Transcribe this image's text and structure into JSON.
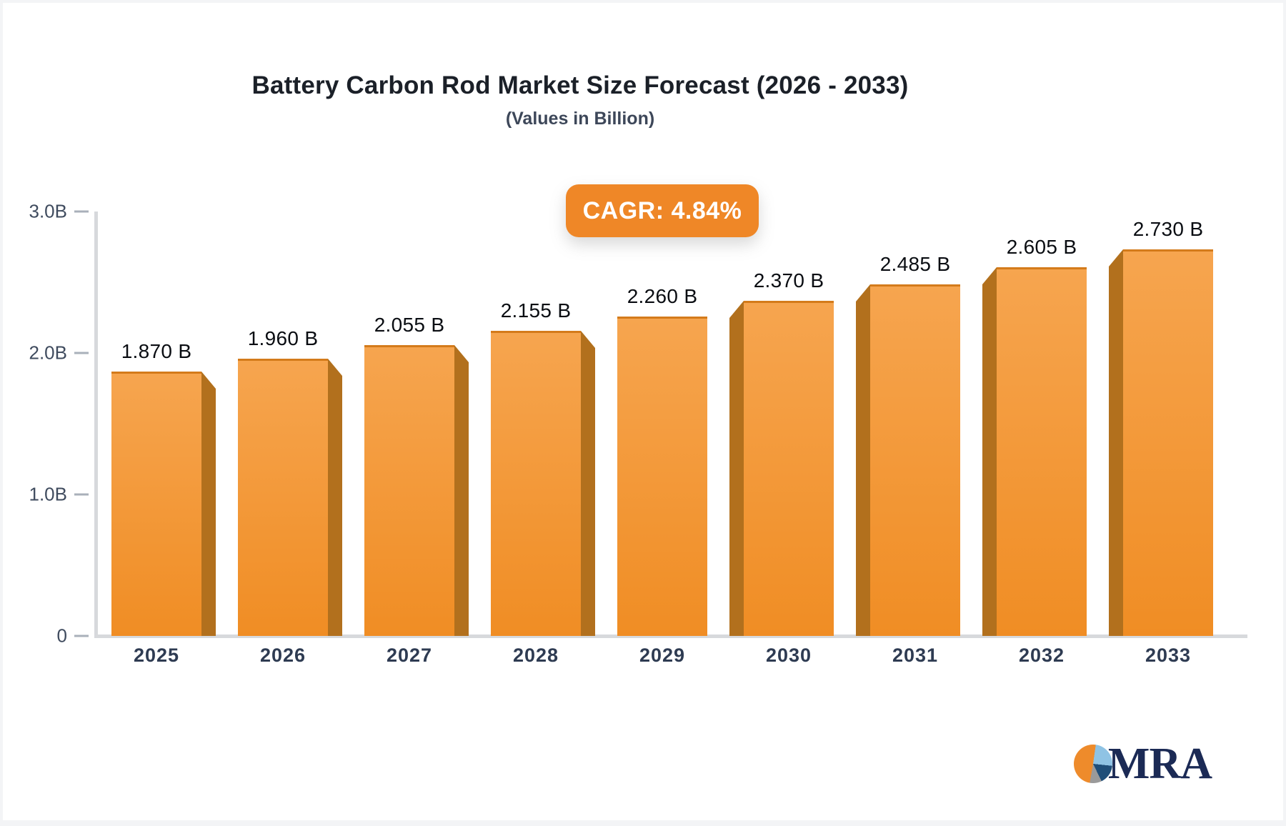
{
  "page": {
    "background": "#f3f4f6",
    "card_background": "#ffffff"
  },
  "header": {
    "title": "Battery Carbon Rod Market Size Forecast (2026 - 2033)",
    "subtitle": "(Values in Billion)"
  },
  "badge": {
    "label": "CAGR: 4.84%",
    "color": "#ef8727"
  },
  "chart_data": {
    "type": "bar",
    "title": "Battery Carbon Rod Market Size Forecast (2026 - 2033)",
    "subtitle": "(Values in Billion)",
    "categories": [
      "2025",
      "2026",
      "2027",
      "2028",
      "2029",
      "2030",
      "2031",
      "2032",
      "2033"
    ],
    "values": [
      1.87,
      1.96,
      2.055,
      2.155,
      2.26,
      2.37,
      2.485,
      2.605,
      2.73
    ],
    "bar_labels": [
      "1.870 B",
      "1.960 B",
      "2.055 B",
      "2.155 B",
      "2.260 B",
      "2.370 B",
      "2.485 B",
      "2.605 B",
      "2.730 B"
    ],
    "yticks": [
      {
        "label": "3.0B",
        "value": 3.0
      },
      {
        "label": "2.0B",
        "value": 2.0
      },
      {
        "label": "1.0B",
        "value": 1.0
      },
      {
        "label": "0",
        "value": 0.0
      }
    ],
    "ylim": [
      0,
      3.0
    ],
    "xlabel": "",
    "ylabel": "",
    "legend": null,
    "grid": false,
    "style": "3d-perspective-center",
    "bar_color_top": "#f6a54f",
    "bar_color_bottom": "#f08d24",
    "bar_side_color": "#b2701d",
    "axis_color": "#d7d9dc"
  },
  "logo": {
    "text": "MRA",
    "text_color": "#1b2a55",
    "pie_colors": [
      "#ee8b2b",
      "#8fc3e4",
      "#1f4e79",
      "#9a9a9a"
    ]
  }
}
